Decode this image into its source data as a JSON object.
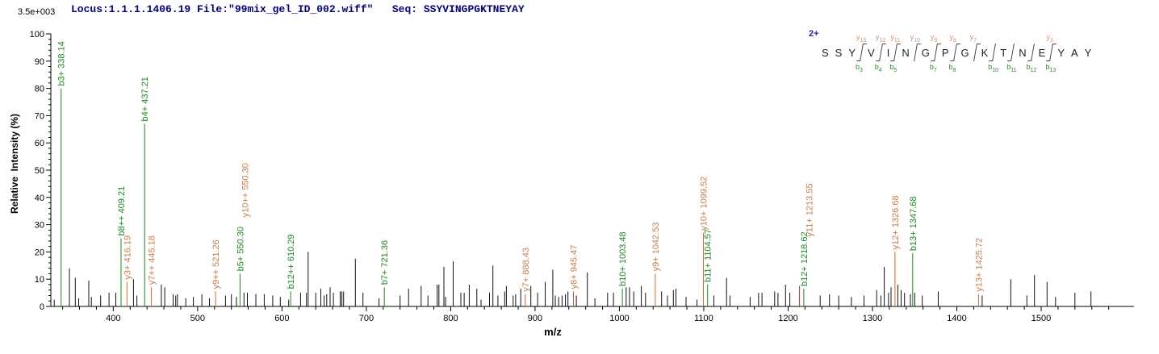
{
  "header": {
    "max_intensity_label": "3.5e+003",
    "info_line": "Locus:1.1.1.1406.19 File:\"99mix_gel_ID_002.wiff\"   Seq: SSYVINGPGKTNEYAY"
  },
  "chart_data": {
    "type": "bar",
    "subtype": "ms2_fragment_spectrum",
    "title": "",
    "xlabel": "m/z",
    "ylabel": "Relative  Intensity (%)",
    "xlim": [
      326,
      1610
    ],
    "ylim": [
      0,
      100
    ],
    "x_axis": {
      "min": 326,
      "max": 1610,
      "label_start": 400,
      "label_end": 1500,
      "major_step": 100,
      "minor_step": 20
    },
    "y_axis": {
      "min": 0,
      "max": 100,
      "major_step": 10,
      "minor_step": 2
    },
    "grid": false,
    "colors": {
      "b_ion": "#1c8a1c",
      "y_ion": "#d2691e",
      "b_label": "#1c8a1c",
      "y_label": "#c97e48",
      "unlabeled": "#111111",
      "axis": "#000000"
    },
    "annotated_peaks": [
      {
        "label": "b3+ 338.14",
        "ion": "b3+",
        "mz": 338.14,
        "intensity": 80,
        "series": "b"
      },
      {
        "label": "b8++ 409.21",
        "ion": "b8++",
        "mz": 409.21,
        "intensity": 25,
        "series": "b"
      },
      {
        "label": "y3+ 416.19",
        "ion": "y3+",
        "mz": 416.19,
        "intensity": 9,
        "series": "y"
      },
      {
        "label": "b4+ 437.21",
        "ion": "b4+",
        "mz": 437.21,
        "intensity": 67,
        "series": "b"
      },
      {
        "label": "y7++ 445.18",
        "ion": "y7++",
        "mz": 445.18,
        "intensity": 7,
        "series": "y"
      },
      {
        "label": "y9++ 521.26",
        "ion": "y9++",
        "mz": 521.26,
        "intensity": 5.5,
        "series": "y"
      },
      {
        "label": "b5+ 550.30",
        "ion": "b5+",
        "mz": 550.3,
        "intensity": 12,
        "series": "b"
      },
      {
        "label": "y10++ 550.30",
        "ion": "y10++",
        "mz": 550.3,
        "intensity": 12,
        "series": "y",
        "no_line": true,
        "dx": 6,
        "label_dy": 67
      },
      {
        "label": "b12++ 610.29",
        "ion": "b12++",
        "mz": 610.29,
        "intensity": 5.5,
        "series": "b"
      },
      {
        "label": "b7+ 721.36",
        "ion": "b7+",
        "mz": 721.36,
        "intensity": 7,
        "series": "b"
      },
      {
        "label": "y7+ 888.43",
        "ion": "y7+",
        "mz": 888.43,
        "intensity": 4.5,
        "series": "y"
      },
      {
        "label": "y8+ 945.47",
        "ion": "y8+",
        "mz": 945.47,
        "intensity": 5.5,
        "series": "y",
        "line_color": "#c25033"
      },
      {
        "label": "b10+ 1003.48",
        "ion": "b10+",
        "mz": 1003.48,
        "intensity": 6.5,
        "series": "b"
      },
      {
        "label": "y9+ 1042.53",
        "ion": "y9+",
        "mz": 1042.53,
        "intensity": 12,
        "series": "y"
      },
      {
        "label": "y10+ 1099.52",
        "ion": "y10+",
        "mz": 1099.52,
        "intensity": 27,
        "series": "y"
      },
      {
        "label": "b11+ 1104.57",
        "ion": "b11+",
        "mz": 1104.57,
        "intensity": 8,
        "series": "b"
      },
      {
        "label": "y11+ 1213.55",
        "ion": "y11+",
        "mz": 1213.55,
        "intensity": 7.5,
        "series": "y",
        "line_color": "#b03535",
        "dx": 12,
        "label_dy": 58
      },
      {
        "label": "b12+ 1218.62",
        "ion": "b12+",
        "mz": 1218.62,
        "intensity": 6.5,
        "series": "b"
      },
      {
        "label": "y12+ 1326.68",
        "ion": "y12+",
        "mz": 1326.68,
        "intensity": 20,
        "series": "y"
      },
      {
        "label": "b13+ 1347.68",
        "ion": "b13+",
        "mz": 1347.68,
        "intensity": 19.5,
        "series": "b"
      },
      {
        "label": "y13+ 1425.72",
        "ion": "y13+",
        "mz": 1425.72,
        "intensity": 4.5,
        "series": "y"
      }
    ],
    "unlabeled_peaks": [
      [
        330,
        2.5
      ],
      [
        348,
        14
      ],
      [
        355,
        10.5
      ],
      [
        359,
        3
      ],
      [
        371,
        9.5
      ],
      [
        374,
        3.5
      ],
      [
        385,
        4
      ],
      [
        395,
        5
      ],
      [
        403,
        5
      ],
      [
        424,
        10
      ],
      [
        428,
        4
      ],
      [
        457,
        8
      ],
      [
        461,
        7
      ],
      [
        471,
        4.5
      ],
      [
        474,
        4
      ],
      [
        476,
        4.5
      ],
      [
        486,
        3
      ],
      [
        495,
        3.5
      ],
      [
        505,
        4.5
      ],
      [
        514,
        3
      ],
      [
        533,
        4
      ],
      [
        540,
        4.5
      ],
      [
        546,
        3.5
      ],
      [
        555,
        5
      ],
      [
        559,
        5
      ],
      [
        569,
        4.5
      ],
      [
        579,
        4.5
      ],
      [
        589,
        4
      ],
      [
        598,
        3.5
      ],
      [
        608,
        2.5
      ],
      [
        622,
        5
      ],
      [
        629,
        5
      ],
      [
        631,
        20
      ],
      [
        640,
        5
      ],
      [
        646,
        6.5
      ],
      [
        650,
        4
      ],
      [
        653,
        4.5
      ],
      [
        657,
        7
      ],
      [
        661,
        5
      ],
      [
        669,
        5.5
      ],
      [
        671,
        5.5
      ],
      [
        673,
        5.5
      ],
      [
        687,
        17.5
      ],
      [
        696,
        5
      ],
      [
        715,
        3
      ],
      [
        740,
        4
      ],
      [
        750,
        6.5
      ],
      [
        765,
        7.5
      ],
      [
        773,
        4
      ],
      [
        784,
        8
      ],
      [
        786,
        8
      ],
      [
        792,
        14.5
      ],
      [
        794,
        3.5
      ],
      [
        803,
        16.5
      ],
      [
        812,
        5
      ],
      [
        816,
        5
      ],
      [
        822,
        8
      ],
      [
        831,
        6.5
      ],
      [
        836,
        2.5
      ],
      [
        846,
        5
      ],
      [
        850,
        15
      ],
      [
        856,
        4
      ],
      [
        864,
        5.5
      ],
      [
        866,
        7.5
      ],
      [
        874,
        4
      ],
      [
        877,
        4.5
      ],
      [
        883,
        6.5
      ],
      [
        895,
        7.5
      ],
      [
        903,
        5
      ],
      [
        912,
        9
      ],
      [
        921,
        13.5
      ],
      [
        924,
        4
      ],
      [
        928,
        3.5
      ],
      [
        932,
        4
      ],
      [
        936,
        4.5
      ],
      [
        939,
        5.5
      ],
      [
        949,
        4
      ],
      [
        962,
        12.5
      ],
      [
        971,
        3
      ],
      [
        986,
        5
      ],
      [
        993,
        5
      ],
      [
        1008,
        7
      ],
      [
        1012,
        7
      ],
      [
        1017,
        5.5
      ],
      [
        1026,
        7.5
      ],
      [
        1031,
        5
      ],
      [
        1050,
        5.5
      ],
      [
        1057,
        4
      ],
      [
        1064,
        6
      ],
      [
        1067,
        6.5
      ],
      [
        1079,
        3.5
      ],
      [
        1092,
        2.5
      ],
      [
        1112,
        4
      ],
      [
        1127,
        10.5
      ],
      [
        1131,
        4
      ],
      [
        1155,
        3.5
      ],
      [
        1165,
        5
      ],
      [
        1169,
        5
      ],
      [
        1184,
        5.5
      ],
      [
        1188,
        5
      ],
      [
        1197,
        8
      ],
      [
        1202,
        5
      ],
      [
        1238,
        4
      ],
      [
        1249,
        4.5
      ],
      [
        1260,
        4
      ],
      [
        1275,
        3.5
      ],
      [
        1290,
        4
      ],
      [
        1305,
        6
      ],
      [
        1310,
        4
      ],
      [
        1314,
        14.5
      ],
      [
        1319,
        5
      ],
      [
        1322,
        7
      ],
      [
        1330,
        8
      ],
      [
        1334,
        6
      ],
      [
        1338,
        5
      ],
      [
        1345,
        4.5
      ],
      [
        1350,
        5
      ],
      [
        1359,
        4
      ],
      [
        1378,
        5.5
      ],
      [
        1430,
        4
      ],
      [
        1464,
        10
      ],
      [
        1483,
        4
      ],
      [
        1492,
        11.5
      ],
      [
        1507,
        9
      ],
      [
        1517,
        3.5
      ],
      [
        1540,
        5
      ],
      [
        1559,
        5.5
      ]
    ]
  },
  "sequence_panel": {
    "charge_label": "2+",
    "residues": [
      {
        "aa": "S"
      },
      {
        "aa": "S"
      },
      {
        "aa": "Y",
        "y": "y13",
        "b": "b3"
      },
      {
        "aa": "V",
        "y": "y12",
        "b": "b4"
      },
      {
        "aa": "I",
        "y": "y11",
        "b": "b5"
      },
      {
        "aa": "N",
        "y": "y10"
      },
      {
        "aa": "G",
        "y": "y9",
        "b": "b7"
      },
      {
        "aa": "P",
        "y": "y8",
        "b": "b8"
      },
      {
        "aa": "G",
        "y": "y7"
      },
      {
        "aa": "K",
        "b": "b10"
      },
      {
        "aa": "T",
        "b": "b11"
      },
      {
        "aa": "N",
        "b": "b12"
      },
      {
        "aa": "E",
        "y": "y3",
        "b": "b13"
      },
      {
        "aa": "Y"
      },
      {
        "aa": "A"
      },
      {
        "aa": "Y"
      }
    ]
  }
}
